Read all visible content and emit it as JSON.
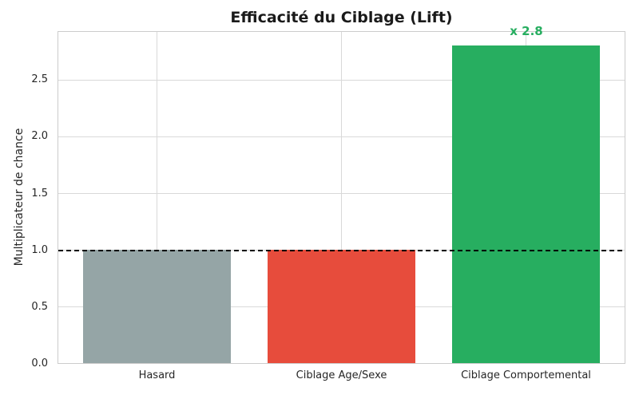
{
  "chart_data": {
    "type": "bar",
    "title": "Efficacité du Ciblage (Lift)",
    "xlabel": "",
    "ylabel": "Multiplicateur de chance",
    "categories": [
      "Hasard",
      "Ciblage Age/Sexe",
      "Ciblage Comportemental"
    ],
    "values": [
      1.0,
      1.0,
      2.8
    ],
    "bar_colors": [
      "#95a5a6",
      "#e74c3c",
      "#27ae60"
    ],
    "ytick_labels": [
      "0.0",
      "0.5",
      "1.0",
      "1.5",
      "2.0",
      "2.5"
    ],
    "ylim": [
      0,
      2.93
    ],
    "grid": "both",
    "grid_color": "#d9d9d9",
    "spine_color": "#cccccc",
    "legend_position": "none",
    "reference_line": {
      "y": 1.0,
      "style": "dashed",
      "color": "#000000"
    },
    "annotation": {
      "text": "x 2.8",
      "value": 2.8,
      "color": "#27ae60",
      "category": "Ciblage Comportemental"
    }
  }
}
